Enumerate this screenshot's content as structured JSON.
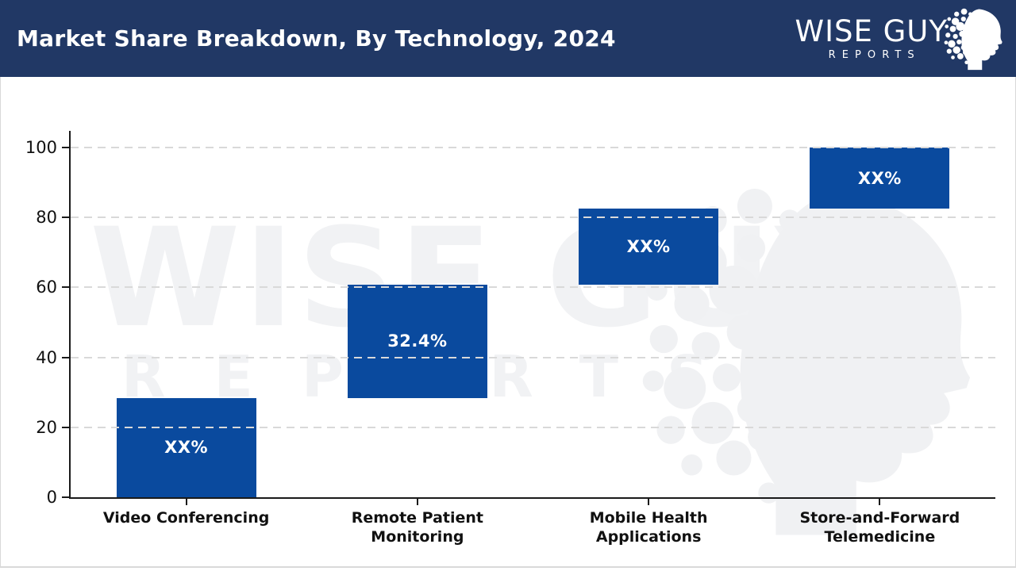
{
  "header": {
    "title": "Market Share Breakdown, By Technology, 2024",
    "logo": {
      "line1": "WISE GUY",
      "line2": "REPORTS"
    }
  },
  "watermark": {
    "line1": "WISE GUY",
    "line2": "REPORTS"
  },
  "colors": {
    "header_bg": "#213865",
    "bar": "#0a4a9e",
    "grid": "#d9d9d9",
    "axis": "#1a1a1a",
    "bar_label": "#ffffff",
    "watermark": "#f1f2f4"
  },
  "chart_data": {
    "type": "bar",
    "subtype": "waterfall",
    "title": "Market Share Breakdown, By Technology, 2024",
    "xlabel": "",
    "ylabel": "",
    "ylim": [
      0,
      100
    ],
    "yticks": [
      0,
      20,
      40,
      60,
      80,
      100
    ],
    "grid": "horizontal dashed, drawn over bars",
    "legend": "none",
    "categories": [
      "Video Conferencing",
      "Remote Patient Monitoring",
      "Mobile Health Applications",
      "Store-and-Forward Telemedicine"
    ],
    "values": [
      28.4,
      32.4,
      21.7,
      17.5
    ],
    "segments": [
      {
        "category": "Video Conferencing",
        "start": 0,
        "end": 28.4,
        "label": "XX%"
      },
      {
        "category": "Remote Patient Monitoring",
        "start": 28.4,
        "end": 60.8,
        "label": "32.4%"
      },
      {
        "category": "Mobile Health Applications",
        "start": 60.8,
        "end": 82.5,
        "label": "XX%"
      },
      {
        "category": "Store-and-Forward Telemedicine",
        "start": 82.5,
        "end": 100,
        "label": "XX%"
      }
    ]
  }
}
